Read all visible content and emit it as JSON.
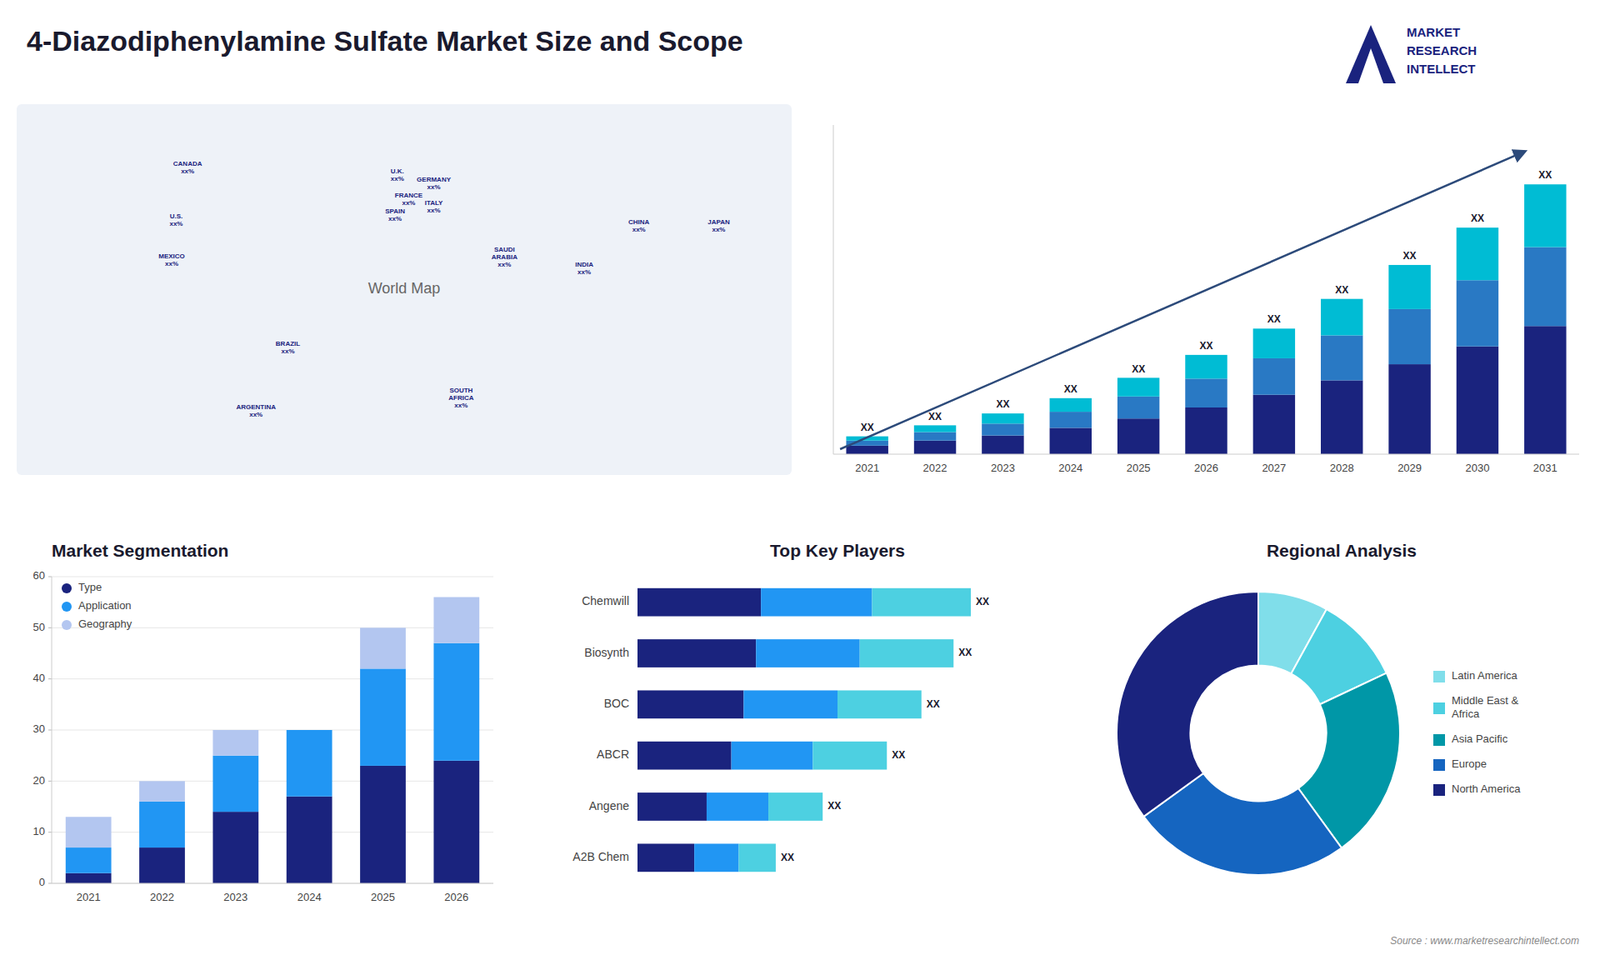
{
  "title": "4-Diazodiphenylamine Sulfate Market Size and Scope",
  "annotations": [
    "Source : www.marketresearchintellect.com",
    "MARKET",
    "RESEARCH",
    "INTELLECT"
  ],
  "chart_data": [
    {
      "type": "map",
      "xlim": [
        -170,
        170
      ],
      "ylim": [
        -58,
        82
      ],
      "annotations": [
        {
          "text": "World Map",
          "x": 0,
          "y": 12
        },
        {
          "text": "U.S.\nxx%",
          "x": -100,
          "y": 38
        },
        {
          "text": "CANADA\nxx%",
          "x": -95,
          "y": 58
        },
        {
          "text": "MEXICO\nxx%",
          "x": -102,
          "y": 23
        },
        {
          "text": "BRAZIL\nxx%",
          "x": -51,
          "y": -10
        },
        {
          "text": "ARGENTINA\nxx%",
          "x": -65,
          "y": -34
        },
        {
          "text": "U.K.\nxx%",
          "x": -3,
          "y": 55
        },
        {
          "text": "FRANCE\nxx%",
          "x": 2,
          "y": 46
        },
        {
          "text": "SPAIN\nxx%",
          "x": -4,
          "y": 40
        },
        {
          "text": "GERMANY\nxx%",
          "x": 13,
          "y": 52
        },
        {
          "text": "ITALY\nxx%",
          "x": 13,
          "y": 43
        },
        {
          "text": "SAUDI\nARABIA\nxx%",
          "x": 44,
          "y": 24
        },
        {
          "text": "SOUTH\nAFRICA\nxx%",
          "x": 25,
          "y": -29
        },
        {
          "text": "CHINA\nxx%",
          "x": 103,
          "y": 36
        },
        {
          "text": "INDIA\nxx%",
          "x": 79,
          "y": 20
        },
        {
          "text": "JAPAN\nxx%",
          "x": 138,
          "y": 36
        }
      ]
    },
    {
      "type": "bar",
      "stacked": true,
      "categories": [
        "2021",
        "2022",
        "2023",
        "2024",
        "2025",
        "2026",
        "2027",
        "2028",
        "2029",
        "2030",
        "2031"
      ],
      "series": [
        {
          "color": "#1a237e",
          "values": [
            1.0,
            1.6,
            2.2,
            3.1,
            4.2,
            5.5,
            7.0,
            8.7,
            10.6,
            12.7,
            15.1
          ]
        },
        {
          "color": "#2979c4",
          "values": [
            0.6,
            1.0,
            1.4,
            1.9,
            2.6,
            3.4,
            4.3,
            5.3,
            6.5,
            7.8,
            9.3
          ]
        },
        {
          "color": "#00bcd4",
          "values": [
            0.5,
            0.8,
            1.2,
            1.6,
            2.2,
            2.8,
            3.5,
            4.3,
            5.2,
            6.2,
            7.4
          ]
        }
      ],
      "ylim": [
        0,
        38.796
      ],
      "tick_labels": "x",
      "annotations": [
        "XX",
        "XX",
        "XX",
        "XX",
        "XX",
        "XX",
        "XX",
        "XX",
        "XX",
        "XX",
        "XX"
      ]
    },
    {
      "type": "bar",
      "stacked": true,
      "title": "Market Segmentation",
      "categories": [
        "2021",
        "2022",
        "2023",
        "2024",
        "2025",
        "2026"
      ],
      "series": [
        {
          "name": "Type",
          "color": "#1a237e",
          "values": [
            2,
            7,
            14,
            17,
            23,
            24
          ]
        },
        {
          "name": "Application",
          "color": "#2196f3",
          "values": [
            5,
            9,
            11,
            13,
            19,
            23
          ]
        },
        {
          "name": "Geography",
          "color": "#b3c6f0",
          "values": [
            6,
            4,
            5,
            0,
            8,
            9
          ]
        }
      ],
      "ylim": [
        0,
        60
      ],
      "yticks": [
        0,
        10,
        20,
        30,
        40,
        50,
        60
      ],
      "grid": true,
      "legend": "upper left"
    },
    {
      "type": "bar",
      "orientation": "horizontal",
      "stacked": true,
      "title": "Top Key Players",
      "categories": [
        "Chemwill",
        "Biosynth",
        "BOC",
        "ABCR",
        "Angene",
        "A2B Chem"
      ],
      "series": [
        {
          "color": "#1a237e",
          "values": [
            5.0,
            4.8,
            4.3,
            3.8,
            2.8,
            2.3
          ]
        },
        {
          "color": "#2196f3",
          "values": [
            4.5,
            4.2,
            3.8,
            3.3,
            2.5,
            1.8
          ]
        },
        {
          "color": "#4dd0e1",
          "values": [
            4.0,
            3.8,
            3.4,
            3.0,
            2.2,
            1.5
          ]
        }
      ],
      "xlim": [
        0,
        16.2
      ],
      "tick_labels": "y",
      "annotations": [
        "XX",
        "XX",
        "XX",
        "XX",
        "XX",
        "XX"
      ]
    },
    {
      "type": "pie",
      "title": "Regional Analysis",
      "categories": [
        "Latin America",
        "Middle East &\nAfrica",
        "Asia Pacific",
        "Europe",
        "North America"
      ],
      "values": [
        8,
        10,
        22,
        25,
        35
      ],
      "colors": [
        "#80deea",
        "#4dd0e1",
        "#0097a7",
        "#1565c0",
        "#1a237e"
      ],
      "legend": "right"
    }
  ]
}
